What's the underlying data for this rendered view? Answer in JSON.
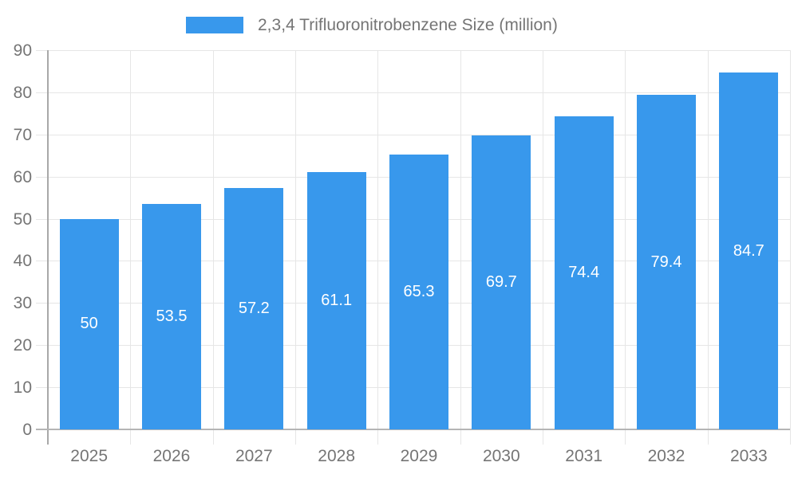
{
  "chart_data": {
    "type": "bar",
    "title": "2,3,4 Trifluoronitrobenzene Size (million)",
    "categories": [
      "2025",
      "2026",
      "2027",
      "2028",
      "2029",
      "2030",
      "2031",
      "2032",
      "2033"
    ],
    "series": [
      {
        "name": "2,3,4 Trifluoronitrobenzene Size (million)",
        "values": [
          50,
          53.5,
          57.2,
          61.1,
          65.3,
          69.7,
          74.4,
          79.4,
          84.7
        ]
      }
    ],
    "value_labels": [
      "50",
      "53.5",
      "57.2",
      "61.1",
      "65.3",
      "69.7",
      "74.4",
      "79.4",
      "84.7"
    ],
    "ylim": [
      0,
      90
    ],
    "ytick_step": 10,
    "ytick_labels": [
      "0",
      "10",
      "20",
      "30",
      "40",
      "50",
      "60",
      "70",
      "80",
      "90"
    ],
    "grid": true,
    "legend_position": "top",
    "colors": {
      "bar": "#3898ec",
      "bar_label": "#ffffff",
      "axis_text": "#757575",
      "legend_text": "#757575",
      "gridline": "#e6e6e6",
      "axis_line_y": "#a8a8a8",
      "axis_line_x": "#b5b5b5"
    }
  }
}
